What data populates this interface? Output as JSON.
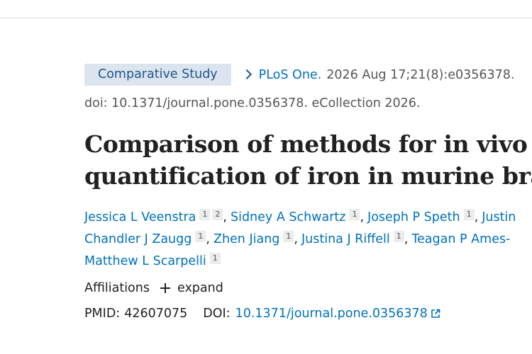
{
  "header": {
    "publication_type": "Comparative Study",
    "journal": "PLoS One.",
    "citation": "2026 Aug 17;21(8):e0356378.",
    "doi_line": "doi: 10.1371/journal.pone.0356378. eCollection 2026."
  },
  "title": {
    "line1": "Comparison of methods for in vivo a",
    "line2": "quantification of iron in murine brai"
  },
  "authors": [
    {
      "name": "Jessica L Veenstra",
      "affiliations": [
        "1",
        "2"
      ]
    },
    {
      "name": "Sidney A Schwartz",
      "affiliations": [
        "1"
      ]
    },
    {
      "name": "Joseph P Speth",
      "affiliations": [
        "1"
      ]
    },
    {
      "name": "Justin",
      "affiliations": []
    },
    {
      "name": "Chandler J Zaugg",
      "affiliations": [
        "1"
      ]
    },
    {
      "name": "Zhen Jiang",
      "affiliations": [
        "1"
      ]
    },
    {
      "name": "Justina J Riffell",
      "affiliations": [
        "1"
      ]
    },
    {
      "name": "Teagan P Ames-",
      "affiliations": []
    },
    {
      "name": "Matthew L Scarpelli",
      "affiliations": [
        "1"
      ]
    }
  ],
  "affiliations_toggle": {
    "label": "Affiliations",
    "expand_label": "expand"
  },
  "identifiers": {
    "pmid_label": "PMID:",
    "pmid": "42607075",
    "doi_label": "DOI:",
    "doi": "10.1371/journal.pone.0356378"
  },
  "colors": {
    "link": "#0071bc",
    "badge_bg": "#dce5ef",
    "text": "#212121",
    "muted": "#555555"
  },
  "icons": {
    "chevron": "chevron-right-icon",
    "expand": "plus-icon",
    "external": "external-link-icon"
  }
}
